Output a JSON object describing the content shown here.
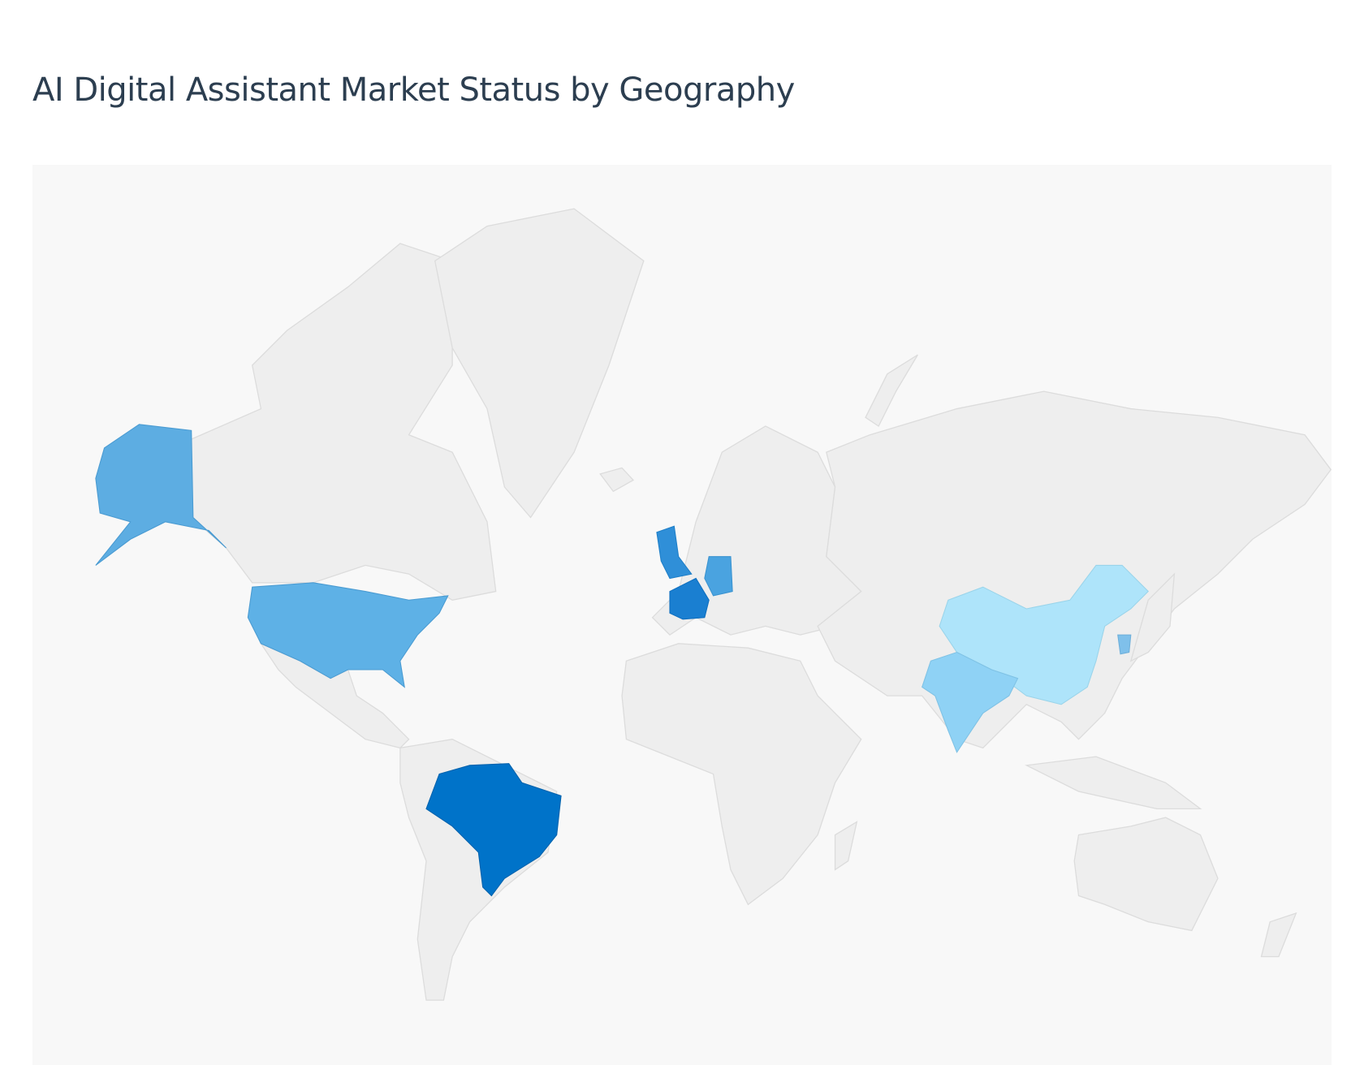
{
  "header": {
    "title": "AI Digital Assistant Market Status by Geography"
  }
}
